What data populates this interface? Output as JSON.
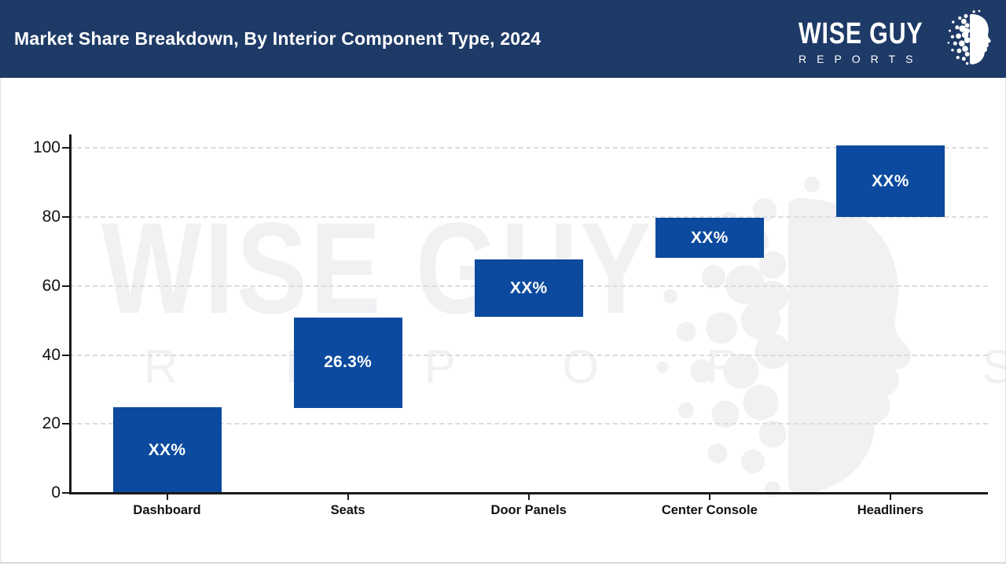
{
  "header": {
    "title": "Market Share Breakdown, By Interior Component Type, 2024",
    "logo": {
      "wordmark": "WISE GUY",
      "subtext": "REPORTS"
    }
  },
  "watermark": {
    "wordmark": "WISE GUY",
    "subtext": "R E P O R T S"
  },
  "chart_data": {
    "type": "bar",
    "subtype": "floating-waterfall",
    "title": "Market Share Breakdown, By Interior Component Type, 2024",
    "categories": [
      "Dashboard",
      "Seats",
      "Door Panels",
      "Center Console",
      "Headliners"
    ],
    "segments": [
      {
        "category": "Dashboard",
        "start": 0,
        "end": 24.8,
        "height": 24.8,
        "label": "XX%"
      },
      {
        "category": "Seats",
        "start": 24.6,
        "end": 50.9,
        "height": 26.3,
        "label": "26.3%"
      },
      {
        "category": "Door Panels",
        "start": 51.0,
        "end": 67.7,
        "height": 16.7,
        "label": "XX%"
      },
      {
        "category": "Center Console",
        "start": 68.1,
        "end": 79.7,
        "height": 11.6,
        "label": "XX%"
      },
      {
        "category": "Headliners",
        "start": 79.9,
        "end": 100.7,
        "height": 20.8,
        "label": "XX%"
      }
    ],
    "xlabel": "",
    "ylabel": "",
    "ylim": [
      0,
      100
    ],
    "yticks": [
      0,
      20,
      40,
      60,
      80,
      100
    ],
    "grid": "horizontal-dashed",
    "legend": "none",
    "colors": {
      "bar": "#0b4a9e",
      "bar_label": "#ffffff",
      "grid": "#dcdcdc",
      "axis": "#1a1a1a",
      "header_bg": "#1e3a67",
      "watermark": "#f1f1f4"
    }
  }
}
